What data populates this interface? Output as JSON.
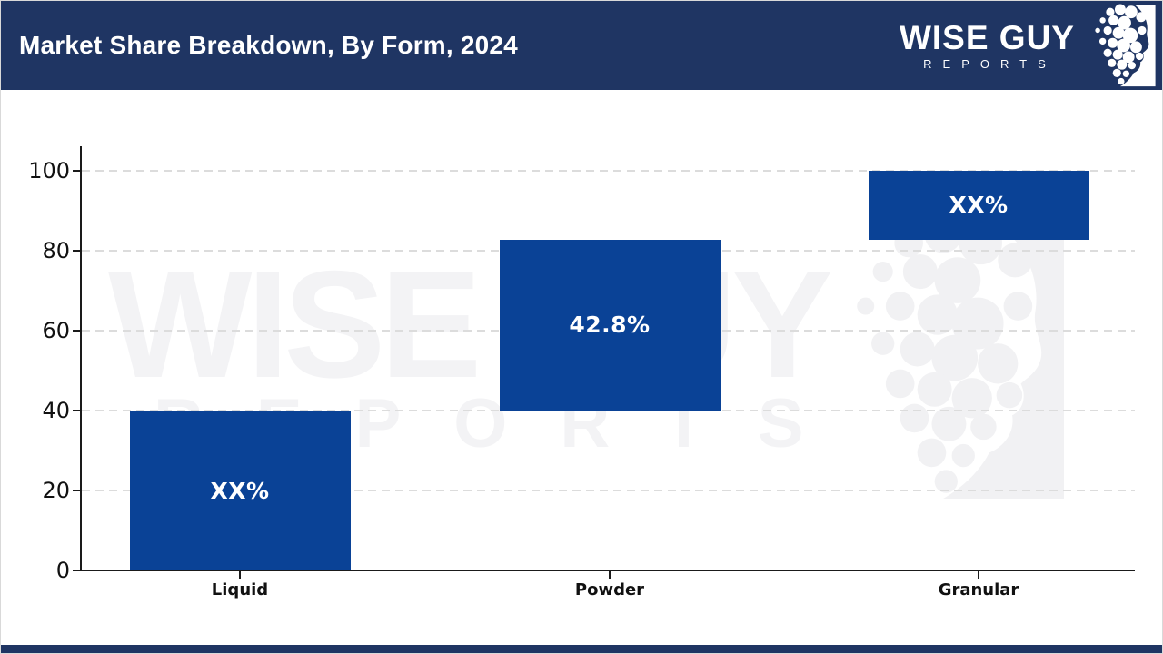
{
  "page": {
    "background": "#ffffff",
    "border_color": "#d9d9d9"
  },
  "header": {
    "title": "Market Share Breakdown, By Form, 2024",
    "background_color": "#1f3563",
    "text_color": "#ffffff",
    "logo": {
      "line1": "WISE GUY",
      "line2": "REPORTS",
      "icon": "dotted-head-icon"
    }
  },
  "footer": {
    "background_color": "#1f3563"
  },
  "watermark": {
    "line1": "WISE GUY",
    "line2": "REPORTS",
    "color": "#f3f3f5"
  },
  "chart_data": {
    "type": "bar",
    "variant": "floating-waterfall",
    "title": "Market Share Breakdown, By Form, 2024",
    "categories": [
      "Liquid",
      "Powder",
      "Granular"
    ],
    "bars": [
      {
        "category": "Liquid",
        "start": 0,
        "end": 40,
        "label": "XX%"
      },
      {
        "category": "Powder",
        "start": 40,
        "end": 82.8,
        "label": "42.8%"
      },
      {
        "category": "Granular",
        "start": 82.8,
        "end": 100,
        "label": "XX%"
      }
    ],
    "bar_color": "#0a4296",
    "label_color": "#ffffff",
    "xlabel": "",
    "ylabel": "",
    "ylim": [
      0,
      105
    ],
    "yticks": [
      0,
      20,
      40,
      60,
      80,
      100
    ],
    "grid": {
      "horizontal": true,
      "style": "dashed",
      "color": "#dcdcdc"
    },
    "legend": null
  }
}
